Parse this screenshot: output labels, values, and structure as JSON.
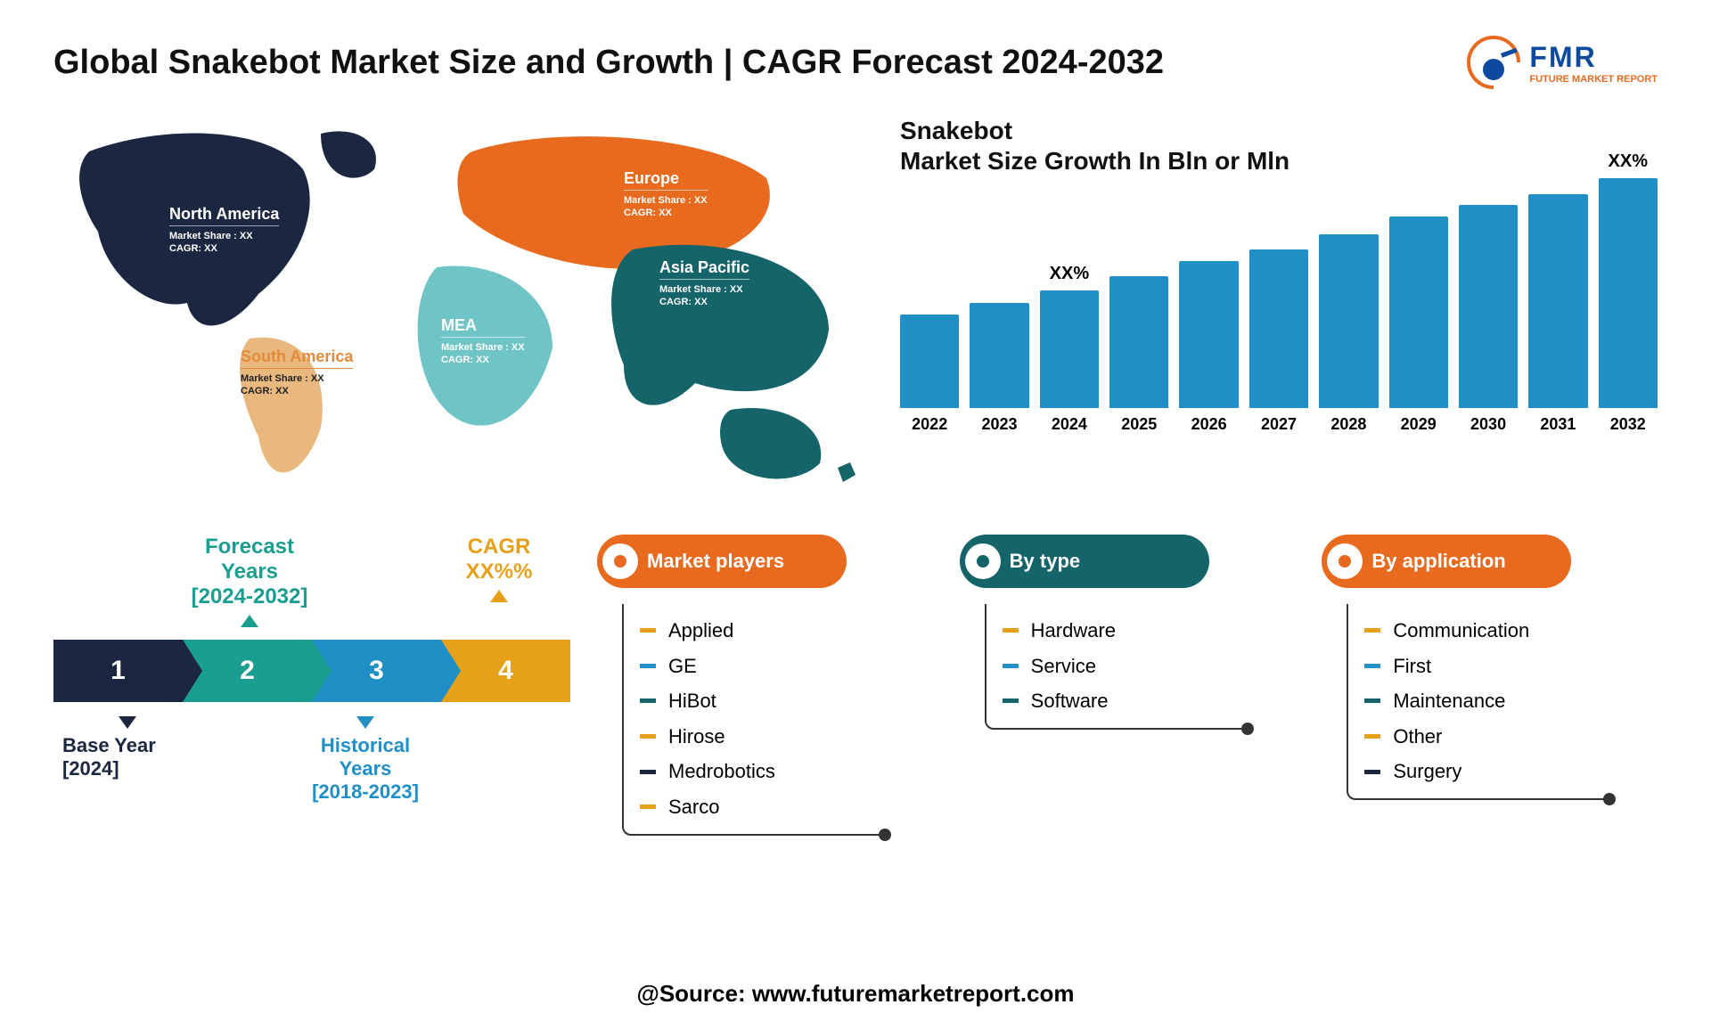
{
  "title": "Global Snakebot  Market Size and Growth | CAGR Forecast 2024-2032",
  "logo": {
    "fmr": "FMR",
    "sub": "FUTURE MARKET REPORT"
  },
  "map": {
    "regions": [
      {
        "name": "North America",
        "share": "Market Share : XX",
        "cagr": "CAGR: XX",
        "color": "#1b2641"
      },
      {
        "name": "South America",
        "share": "Market Share : XX",
        "cagr": "CAGR: XX",
        "color": "#e9b87f"
      },
      {
        "name": "Europe",
        "share": "Market Share : XX",
        "cagr": "CAGR: XX",
        "color": "#e86a1f"
      },
      {
        "name": "MEA",
        "share": "Market Share : XX",
        "cagr": "CAGR: XX",
        "color": "#6fc5c5"
      },
      {
        "name": "Asia Pacific",
        "share": "Market Share : XX",
        "cagr": "CAGR: XX",
        "color": "#14646a"
      }
    ]
  },
  "chart": {
    "title": "Snakebot\nMarket Size Growth In Bln or Mln",
    "type": "bar",
    "bar_color": "#1f8fc6",
    "background_color": "#ffffff",
    "years": [
      "2022",
      "2023",
      "2024",
      "2025",
      "2026",
      "2027",
      "2028",
      "2029",
      "2030",
      "2031",
      "2032"
    ],
    "heights": [
      105,
      118,
      132,
      148,
      165,
      178,
      195,
      215,
      228,
      240,
      258
    ],
    "annotations": {
      "2024": "XX%",
      "2032": "XX%"
    },
    "label_fontsize": 18
  },
  "timeline": {
    "forecast": {
      "label": "Forecast Years",
      "range": "[2024-2032]",
      "color": "#1a9e92"
    },
    "cagr": {
      "label": "CAGR",
      "value": "XX%%",
      "color": "#e7a01a"
    },
    "base": {
      "label": "Base Year",
      "range": "[2024]",
      "color": "#1b2641"
    },
    "historical": {
      "label": "Historical Years",
      "range": "[2018-2023]",
      "color": "#1f8fc6"
    },
    "segments": [
      {
        "n": "1",
        "color": "#1b2641"
      },
      {
        "n": "2",
        "color": "#1a9e92"
      },
      {
        "n": "3",
        "color": "#1f8fc6"
      },
      {
        "n": "4",
        "color": "#e7a01a"
      }
    ]
  },
  "categories": [
    {
      "title": "Market players",
      "header_color": "#e86a1f",
      "items": [
        {
          "label": "Applied",
          "tick": "#e7a01a"
        },
        {
          "label": "GE",
          "tick": "#1f8fc6"
        },
        {
          "label": "HiBot",
          "tick": "#14646a"
        },
        {
          "label": "Hirose",
          "tick": "#e7a01a"
        },
        {
          "label": "Medrobotics",
          "tick": "#1b2641"
        },
        {
          "label": "Sarco",
          "tick": "#e7a01a"
        }
      ]
    },
    {
      "title": "By type",
      "header_color": "#14646a",
      "items": [
        {
          "label": "Hardware",
          "tick": "#e7a01a"
        },
        {
          "label": "Service",
          "tick": "#1f8fc6"
        },
        {
          "label": "Software",
          "tick": "#14646a"
        }
      ]
    },
    {
      "title": "By application",
      "header_color": "#e86a1f",
      "items": [
        {
          "label": "Communication",
          "tick": "#e7a01a"
        },
        {
          "label": "First",
          "tick": "#1f8fc6"
        },
        {
          "label": "Maintenance",
          "tick": "#14646a"
        },
        {
          "label": "Other",
          "tick": "#e7a01a"
        },
        {
          "label": "Surgery",
          "tick": "#1b2641"
        }
      ]
    }
  ],
  "source": "@Source: www.futuremarketreport.com"
}
